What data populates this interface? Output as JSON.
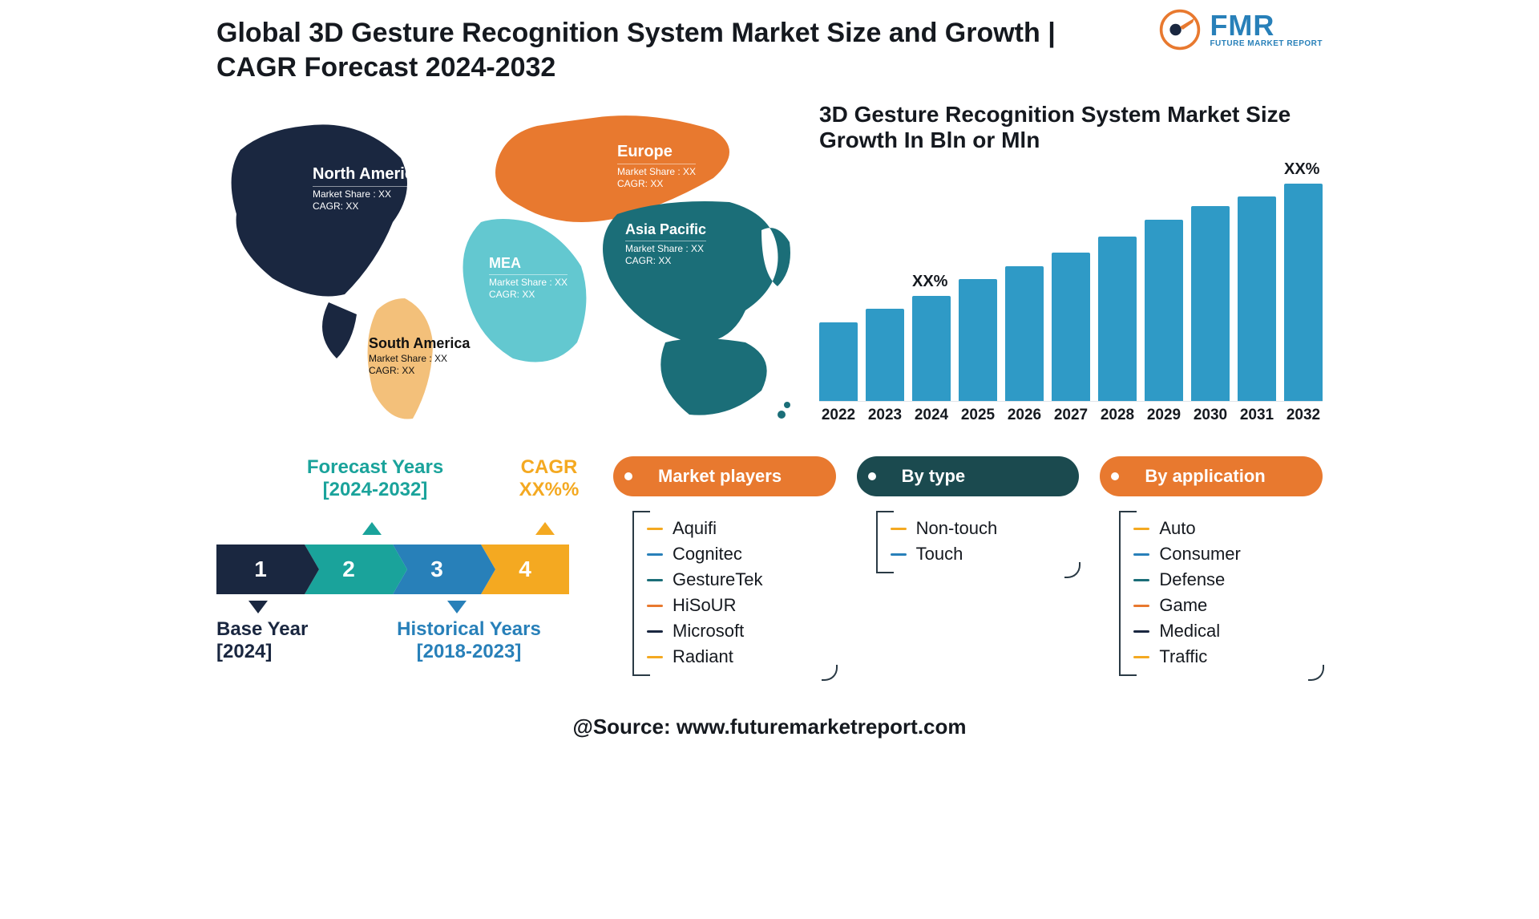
{
  "title": "Global 3D Gesture Recognition System Market Size and Growth | CAGR Forecast 2024-2032",
  "logo": {
    "fmr": "FMR",
    "sub": "FUTURE MARKET REPORT"
  },
  "colors": {
    "navy": "#1a2740",
    "teal": "#1aa39b",
    "blue": "#2880b9",
    "orange": "#e8792f",
    "amber": "#f4a921",
    "cyan": "#63c8d0",
    "dark_teal": "#1b6e78",
    "bar": "#2f9ac6",
    "bar_fill_gap": 10
  },
  "map": {
    "regions": [
      {
        "name": "North America",
        "share": "Market Share : XX",
        "cagr": "CAGR: XX",
        "text_color": "#ffffff"
      },
      {
        "name": "South America",
        "share": "Market Share : XX",
        "cagr": "CAGR: XX",
        "text_color": "#111111"
      },
      {
        "name": "Europe",
        "share": "Market Share : XX",
        "cagr": "CAGR: XX",
        "text_color": "#ffffff"
      },
      {
        "name": "MEA",
        "share": "Market Share : XX",
        "cagr": "CAGR: XX",
        "text_color": "#ffffff"
      },
      {
        "name": "Asia Pacific",
        "share": "Market Share : XX",
        "cagr": "CAGR: XX",
        "text_color": "#ffffff"
      }
    ]
  },
  "chart": {
    "title": "3D Gesture Recognition System Market Size Growth In Bln or Mln",
    "years": [
      "2022",
      "2023",
      "2024",
      "2025",
      "2026",
      "2027",
      "2028",
      "2029",
      "2030",
      "2031",
      "2032"
    ],
    "values": [
      120,
      140,
      160,
      185,
      205,
      225,
      250,
      275,
      295,
      310,
      330
    ],
    "max": 340,
    "bar_color": "#2f9ac6",
    "annotations": [
      {
        "idx": 2,
        "text": "XX%"
      },
      {
        "idx": 10,
        "text": "XX%"
      }
    ]
  },
  "timeline": {
    "labels": {
      "base": {
        "text": "Base Year [2024]",
        "color": "#1a2740"
      },
      "forecast": {
        "text": "Forecast Years [2024-2032]",
        "color": "#1aa39b"
      },
      "hist": {
        "text": "Historical Years [2018-2023]",
        "color": "#2880b9"
      },
      "cagr": {
        "text": "CAGR XX%%",
        "color": "#f4a921"
      }
    },
    "chevrons": [
      {
        "n": "1",
        "bg": "#1a2740"
      },
      {
        "n": "2",
        "bg": "#1aa39b"
      },
      {
        "n": "3",
        "bg": "#2880b9"
      },
      {
        "n": "4",
        "bg": "#f4a921"
      }
    ]
  },
  "cards": [
    {
      "header": "Market players",
      "header_bg": "#e8792f",
      "items": [
        {
          "t": "Aquifi",
          "c": "#f4a921"
        },
        {
          "t": "Cognitec",
          "c": "#2880b9"
        },
        {
          "t": "GestureTek",
          "c": "#1b6e78"
        },
        {
          "t": "HiSoUR",
          "c": "#e8792f"
        },
        {
          "t": "Microsoft",
          "c": "#1a2740"
        },
        {
          "t": "Radiant",
          "c": "#f4a921"
        }
      ]
    },
    {
      "header": "By type",
      "header_bg": "#1b4a4f",
      "items": [
        {
          "t": "Non-touch",
          "c": "#f4a921"
        },
        {
          "t": "Touch",
          "c": "#2880b9"
        }
      ]
    },
    {
      "header": "By application",
      "header_bg": "#e8792f",
      "items": [
        {
          "t": "Auto",
          "c": "#f4a921"
        },
        {
          "t": "Consumer",
          "c": "#2880b9"
        },
        {
          "t": "Defense",
          "c": "#1b6e78"
        },
        {
          "t": "Game",
          "c": "#e8792f"
        },
        {
          "t": "Medical",
          "c": "#1a2740"
        },
        {
          "t": "Traffic",
          "c": "#f4a921"
        }
      ]
    }
  ],
  "source": "@Source: www.futuremarketreport.com"
}
